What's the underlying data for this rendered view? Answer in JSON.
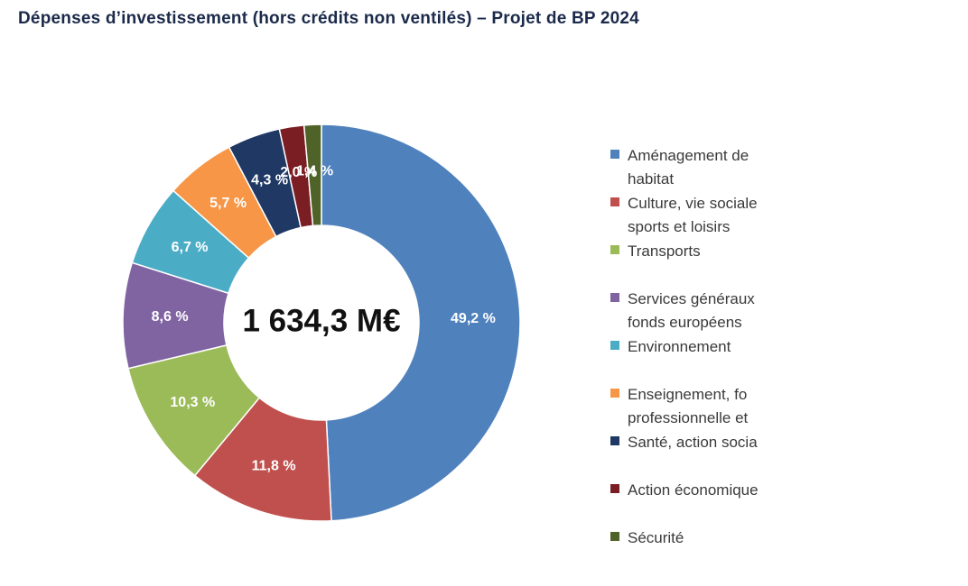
{
  "page": {
    "title": "Dépenses d’investissement (hors crédits non ventilés) – Projet de BP 2024"
  },
  "chart_data": {
    "type": "pie",
    "style": "donut",
    "title": "Dépenses d’investissement (hors crédits non ventilés) – Projet de BP 2024",
    "center_label": "1 634,3 M€",
    "legend_position": "right",
    "categories": [
      "Aménagement de l’habitat",
      "Culture, vie sociale, sports et loisirs",
      "Transports",
      "Services généraux, fonds européens",
      "Environnement",
      "Enseignement, formation professionnelle et",
      "Santé, action sociale",
      "Action économique",
      "Sécurité"
    ],
    "legend_lines": [
      [
        "Aménagement de",
        "habitat"
      ],
      [
        "Culture, vie sociale",
        "sports et loisirs"
      ],
      [
        "Transports"
      ],
      [
        "Services généraux",
        "fonds européens"
      ],
      [
        "Environnement"
      ],
      [
        "Enseignement, fo",
        "professionnelle et"
      ],
      [
        "Santé, action socia"
      ],
      [
        "Action économique"
      ],
      [
        "Sécurité"
      ]
    ],
    "values": [
      49.2,
      11.8,
      10.3,
      8.6,
      6.7,
      5.7,
      4.3,
      2.0,
      1.4
    ],
    "data_labels": [
      "49,2 %",
      "11,8 %",
      "10,3 %",
      "8,6 %",
      "6,7 %",
      "5,7 %",
      "4,3 %",
      "2,0 %",
      "1,4 %"
    ],
    "colors": [
      "#4f81bd",
      "#c0504d",
      "#9bbb59",
      "#8064a2",
      "#4bacc6",
      "#f79646",
      "#1f3864",
      "#7b1e24",
      "#4f6228"
    ],
    "unit": "%"
  }
}
